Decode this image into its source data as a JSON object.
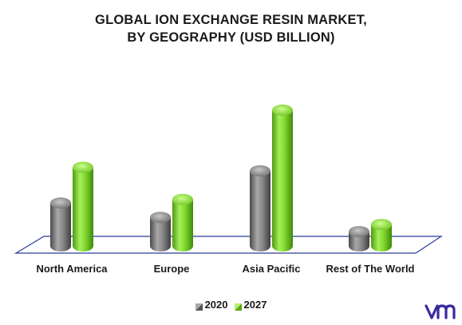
{
  "chart_data": {
    "type": "bar",
    "title_lines": [
      "GLOBAL ION EXCHANGE RESIN MARKET,",
      "BY GEOGRAPHY (USD BILLION)"
    ],
    "categories": [
      "North America",
      "Europe",
      "Asia Pacific",
      "Rest of The World"
    ],
    "series": [
      {
        "name": "2020",
        "values": [
          1.2,
          0.8,
          2.1,
          0.4
        ],
        "color": "#7a7a7a"
      },
      {
        "name": "2027",
        "values": [
          2.2,
          1.3,
          3.8,
          0.6
        ],
        "color": "#7ed321"
      }
    ],
    "ylim": [
      0,
      4.2
    ],
    "legend_position": "bottom"
  },
  "logo": {
    "icon": "vmr-logo-icon",
    "color": "#3a2aa0"
  }
}
